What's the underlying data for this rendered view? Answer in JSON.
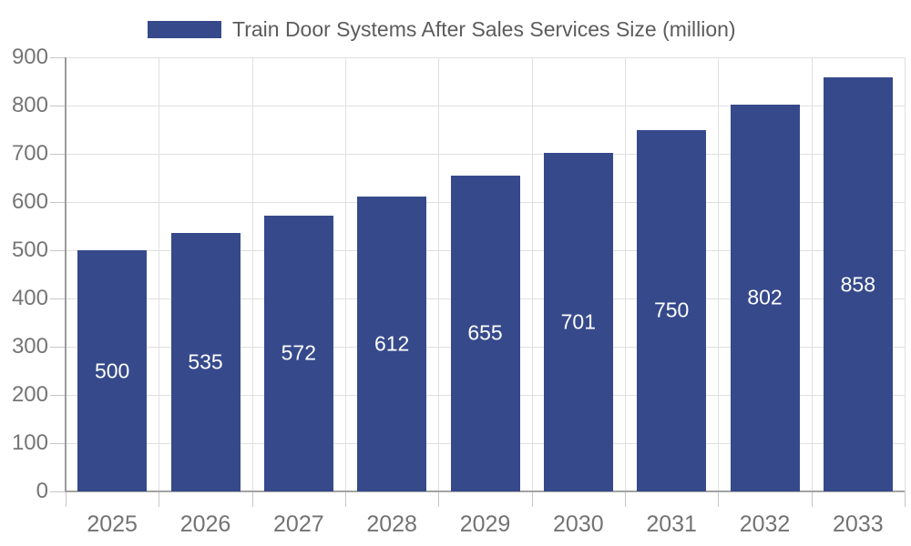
{
  "chart_data": {
    "type": "bar",
    "title": "Train Door Systems After Sales Services Size (million)",
    "categories": [
      "2025",
      "2026",
      "2027",
      "2028",
      "2029",
      "2030",
      "2031",
      "2032",
      "2033"
    ],
    "values": [
      500,
      535,
      572,
      612,
      655,
      701,
      750,
      802,
      858
    ],
    "xlabel": "",
    "ylabel": "",
    "ylim": [
      0,
      900
    ],
    "ytick_step": 100,
    "grid": true,
    "legend": {
      "label": "Train Door Systems After Sales Services Size (million)",
      "position": "top"
    },
    "colors": {
      "bar": "#36498B",
      "bar_value_label": "#ffffff",
      "axis_text": "#757575",
      "legend_text": "#5c5c5c",
      "gridline": "#e0e0e0",
      "axis_line": "#9b9b9b",
      "background": "#ffffff"
    }
  }
}
